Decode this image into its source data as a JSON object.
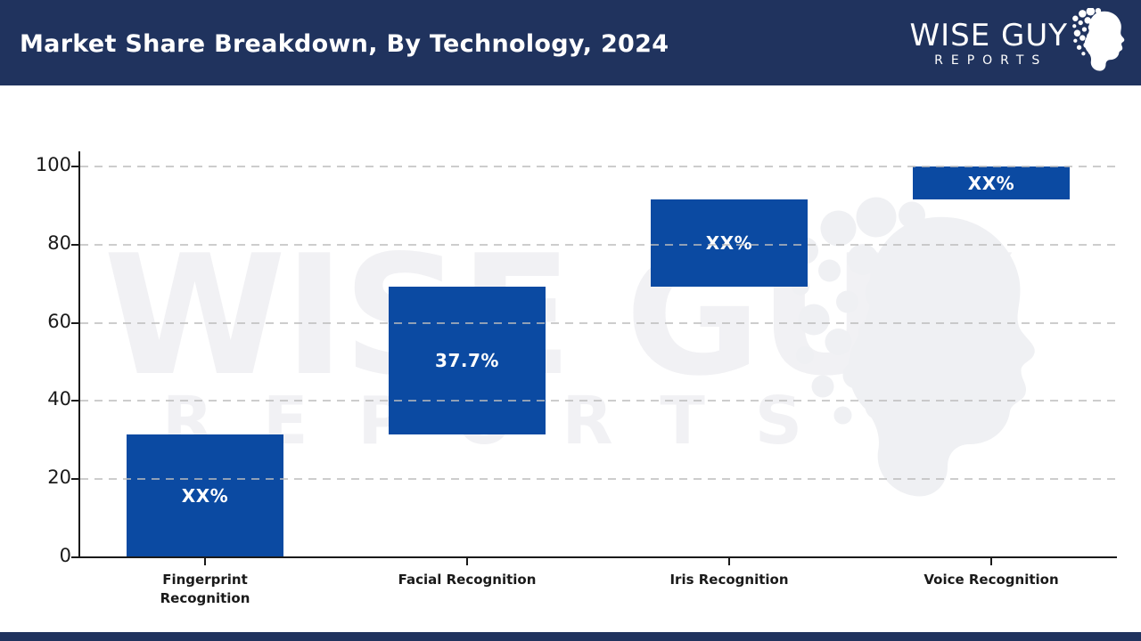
{
  "header": {
    "title": "Market Share Breakdown, By Technology, 2024",
    "logo": {
      "line1": "WISE GUY",
      "line2": "REPORTS"
    },
    "bg_color": "#20335e",
    "text_color": "#ffffff"
  },
  "watermark": {
    "line1": "WISE GUY",
    "line2": "REPORTS"
  },
  "footer": {
    "bg_color": "#20335e"
  },
  "chart_data": {
    "type": "bar",
    "subtype": "waterfall",
    "title": "Market Share Breakdown, By Technology, 2024",
    "categories": [
      "Fingerprint\nRecognition",
      "Facial Recognition",
      "Iris Recognition",
      "Voice Recognition"
    ],
    "bars": [
      {
        "category": "Fingerprint Recognition",
        "start": 0,
        "end": 31.5,
        "label": "XX%"
      },
      {
        "category": "Facial Recognition",
        "start": 31.5,
        "end": 69.2,
        "label": "37.7%"
      },
      {
        "category": "Iris Recognition",
        "start": 69.2,
        "end": 91.5,
        "label": "XX%"
      },
      {
        "category": "Voice Recognition",
        "start": 91.5,
        "end": 100,
        "label": "XX%"
      }
    ],
    "yticks": [
      0,
      20,
      40,
      60,
      80,
      100
    ],
    "ylim": [
      0,
      104
    ],
    "bar_color": "#0b4aa2",
    "bar_label_color": "#ffffff",
    "grid": "dashed horizontal, drawn over bars",
    "legend": "none"
  }
}
